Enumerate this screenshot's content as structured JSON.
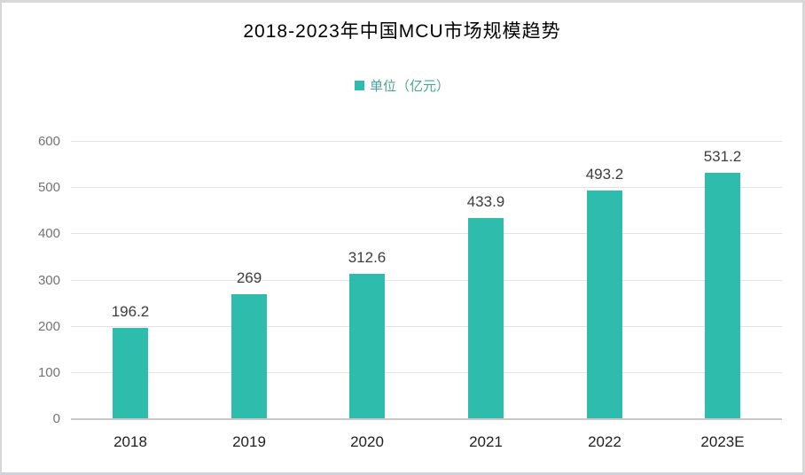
{
  "chart_data": {
    "type": "bar",
    "title": "2018-2023年中国MCU市场规模趋势",
    "legend": "单位（亿元）",
    "legend_position": "top-center",
    "categories": [
      "2018",
      "2019",
      "2020",
      "2021",
      "2022",
      "2023E"
    ],
    "values": [
      196.2,
      269,
      312.6,
      433.9,
      493.2,
      531.2
    ],
    "value_labels": [
      "196.2",
      "269",
      "312.6",
      "433.9",
      "493.2",
      "531.2"
    ],
    "xlabel": "",
    "ylabel": "",
    "ylim": [
      0,
      600
    ],
    "yticks": [
      0,
      100,
      200,
      300,
      400,
      500,
      600
    ],
    "grid": "on",
    "bar_color": "#2ebcad",
    "legend_text_color": "#4aa39a",
    "gridline_color": "#e3e3e3",
    "axis_line_color": "#c9c9c9",
    "y_tick_color": "#737373",
    "x_tick_color": "#212121",
    "value_label_color": "#3d3d3d"
  }
}
